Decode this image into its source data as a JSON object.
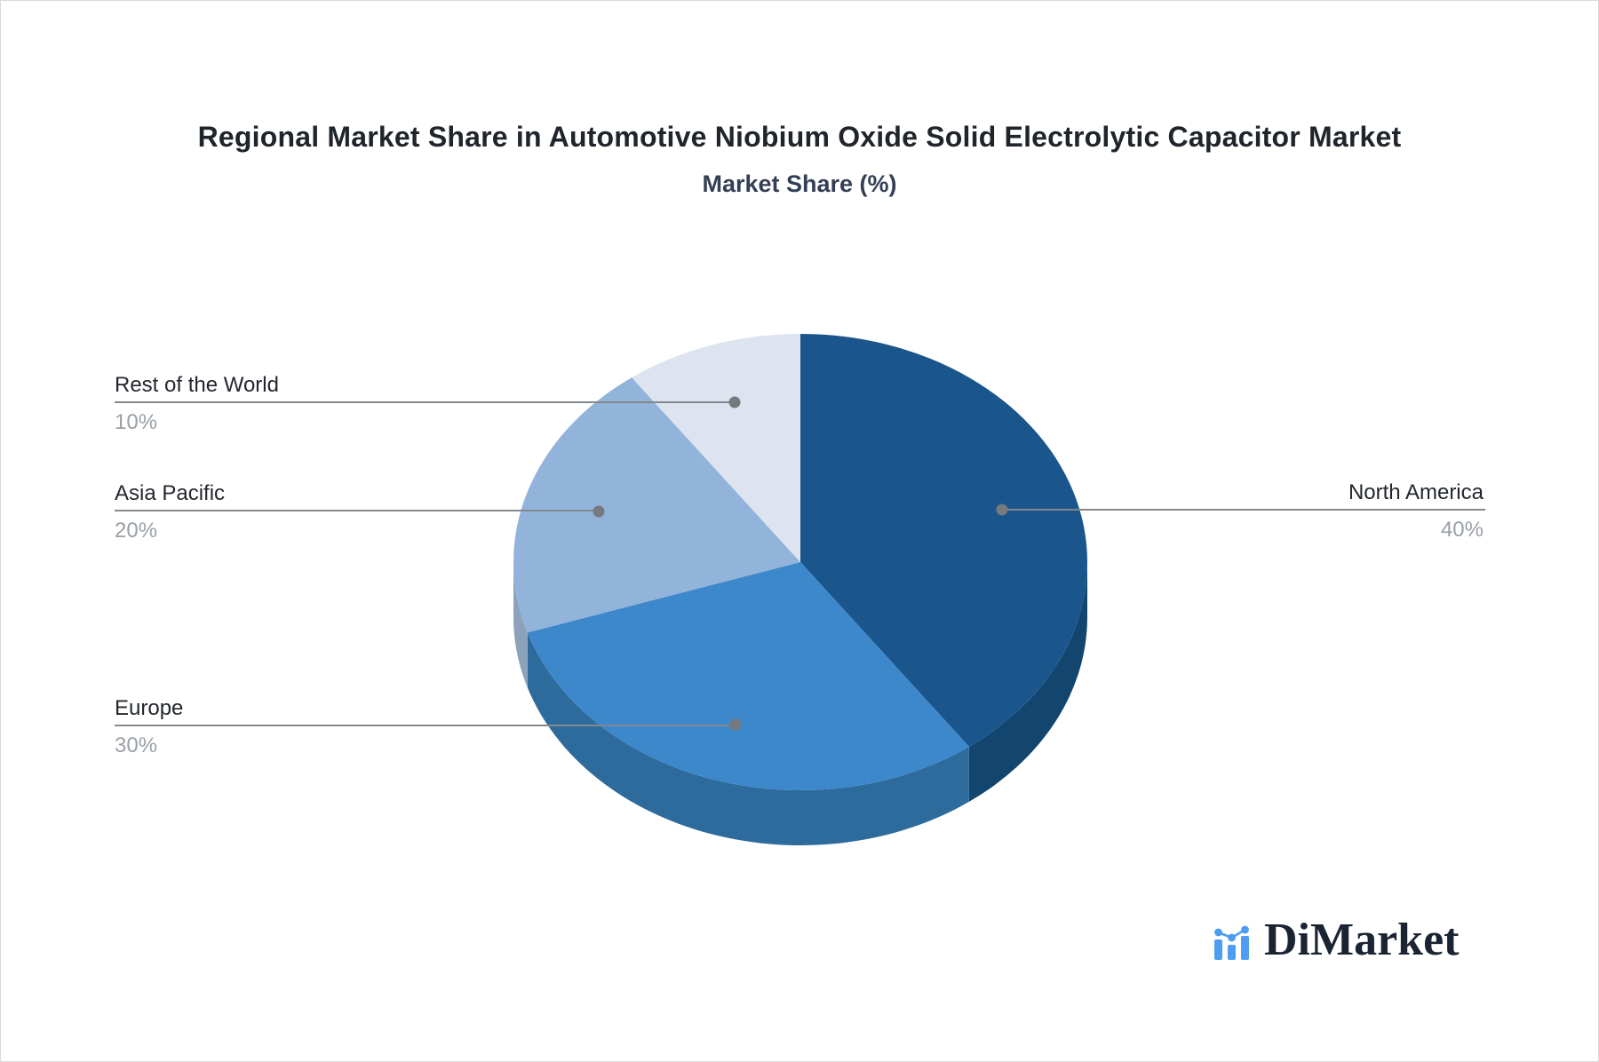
{
  "chart_data": {
    "type": "pie",
    "style": "3d",
    "title": "Regional Market Share in Automotive Niobium Oxide Solid Electrolytic Capacitor Market",
    "subtitle": "Market Share (%)",
    "unit": "%",
    "start_angle_deg": 0,
    "direction": "clockwise",
    "legend_position": "none",
    "labels": "outside-callouts-with-leader-lines",
    "slices": [
      {
        "label": "North America",
        "value": 40,
        "display": "40%",
        "color": "#1a568c",
        "side_color": "#12466f"
      },
      {
        "label": "Europe",
        "value": 30,
        "display": "30%",
        "color": "#3d87cb",
        "side_color": "#2e6b9d"
      },
      {
        "label": "Asia Pacific",
        "value": 20,
        "display": "20%",
        "color": "#92b4db",
        "side_color": "#8ba2ba"
      },
      {
        "label": "Rest of the World",
        "value": 10,
        "display": "10%",
        "color": "#dde4f0",
        "side_color": "#bcc7d8"
      }
    ],
    "leader_line_color": "#84888c",
    "leader_dot_color": "#76797d",
    "label_color": "#23272d",
    "value_color": "#9aa0a6"
  },
  "branding": {
    "logo_text": "DiMarket",
    "logo_icon": "bar-chart-with-trend-dots-icon",
    "logo_accent": "#4d9ef2"
  }
}
